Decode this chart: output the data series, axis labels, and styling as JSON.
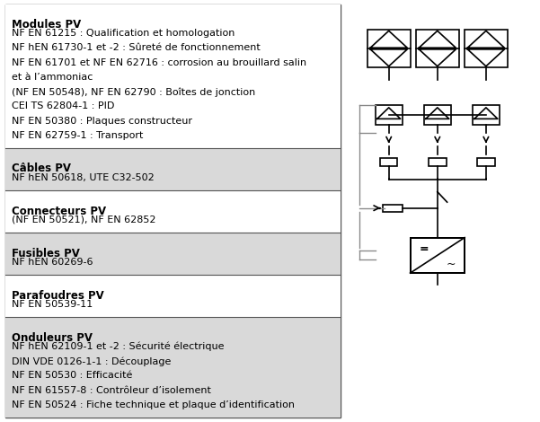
{
  "sections": [
    {
      "title": "Modules PV",
      "lines": [
        "NF EN 61215 : Qualification et homologation",
        "NF hEN 61730-1 et -2 : Sûreté de fonctionnement",
        "NF EN 61701 et NF EN 62716 : corrosion au brouillard salin",
        "et à l’ammoniac",
        "(NF EN 50548), NF EN 62790 : Boîtes de jonction",
        "CEI TS 62804-1 : PID",
        "NF EN 50380 : Plaques constructeur",
        "NF EN 62759-1 : Transport"
      ],
      "bg": "#ffffff"
    },
    {
      "title": "Câbles PV",
      "lines": [
        "NF hEN 50618, UTE C32-502"
      ],
      "bg": "#d9d9d9"
    },
    {
      "title": "Connecteurs PV",
      "lines": [
        "(NF EN 50521), NF EN 62852"
      ],
      "bg": "#ffffff"
    },
    {
      "title": "Fusibles PV",
      "lines": [
        "NF hEN 60269-6"
      ],
      "bg": "#d9d9d9"
    },
    {
      "title": "Parafoudres PV",
      "lines": [
        "NF EN 50539-11"
      ],
      "bg": "#ffffff"
    },
    {
      "title": "Onduleurs PV",
      "lines": [
        "NF hEN 62109-1 et -2 : Sécurité électrique",
        "DIN VDE 0126-1-1 : Découplage",
        "NF EN 50530 : Efficacité",
        "NF EN 61557-8 : Contrôleur d’isolement",
        "NF EN 50524 : Fiche technique et plaque d’identification"
      ],
      "bg": "#d9d9d9"
    }
  ],
  "border_color": "#555555",
  "title_fontsize": 8.5,
  "text_fontsize": 8.0,
  "fig_bg": "#ffffff"
}
